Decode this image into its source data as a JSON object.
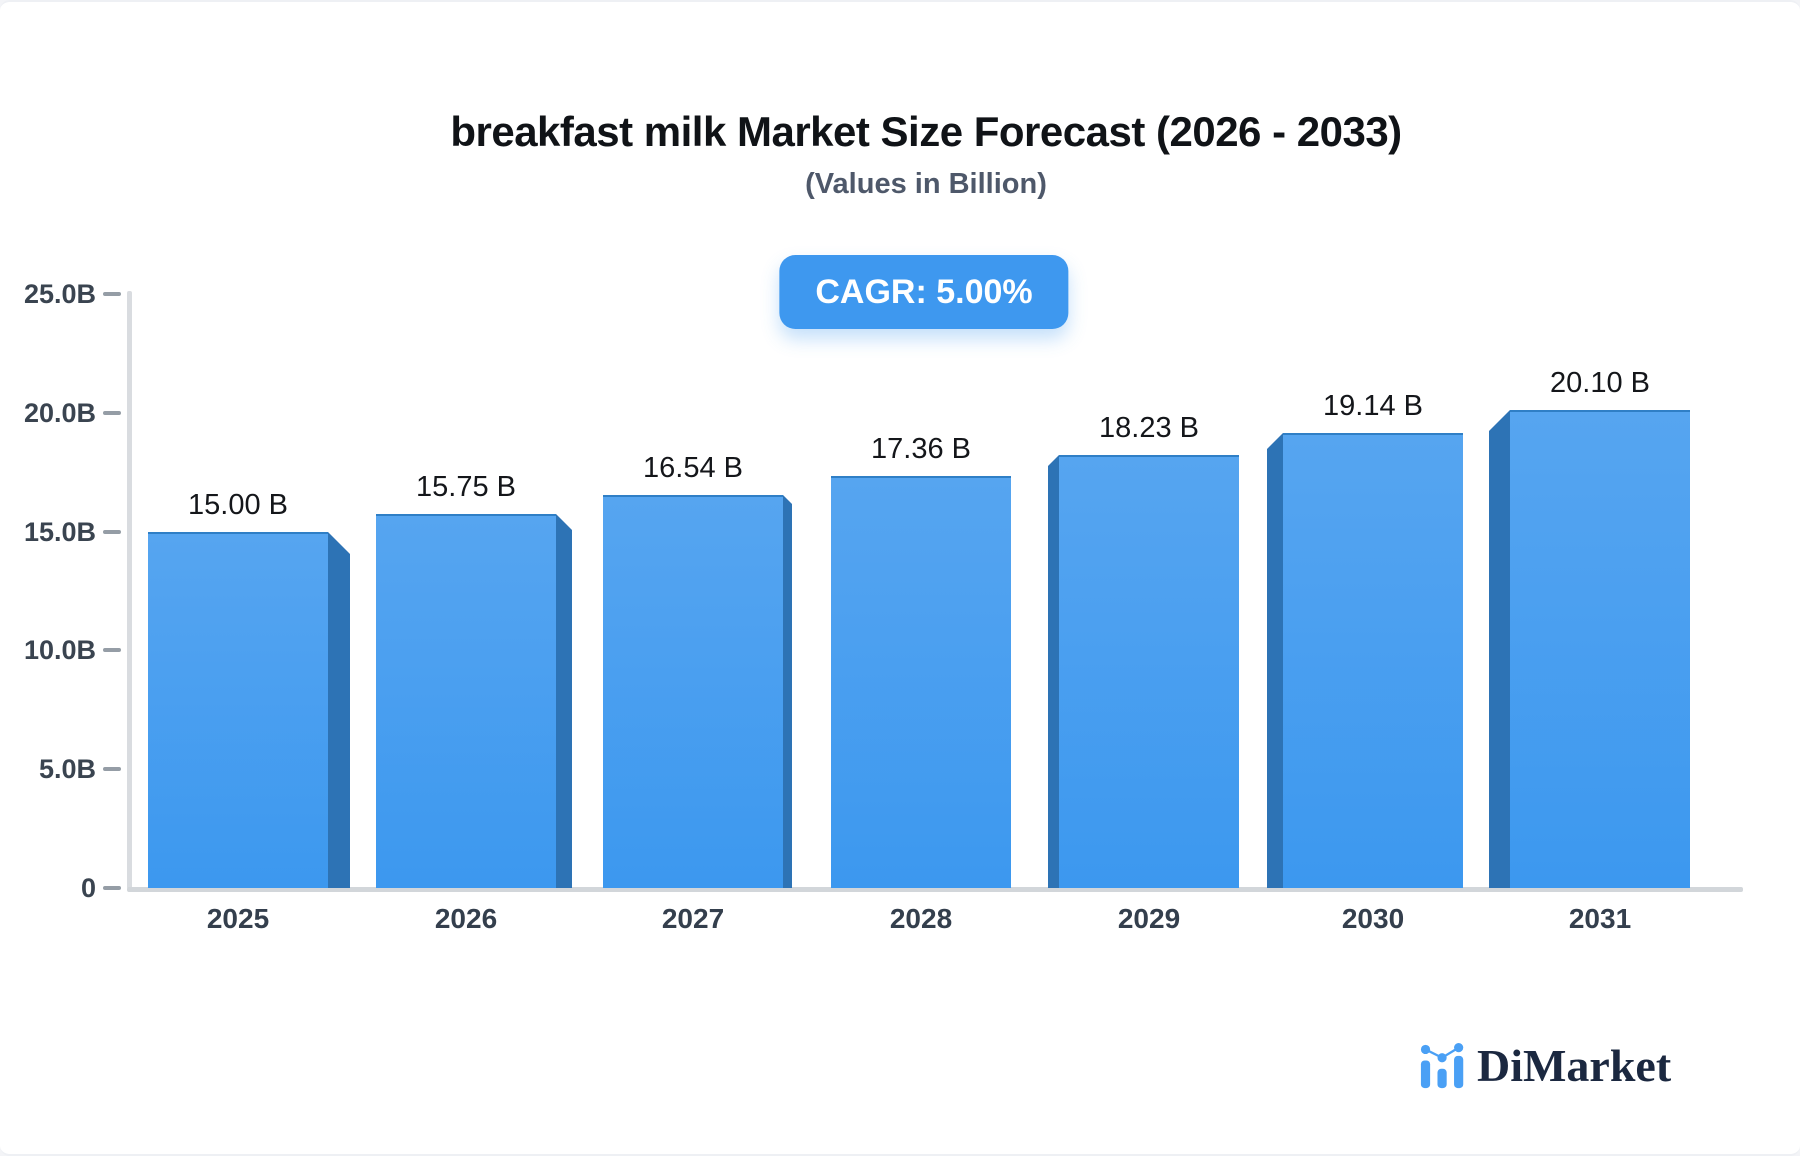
{
  "header": {
    "title": "breakfast milk Market Size Forecast (2026 - 2033)",
    "subtitle": "(Values in Billion)"
  },
  "cagr": {
    "label": "CAGR: 5.00%"
  },
  "brand": {
    "name": "DiMarket",
    "icon": "dimarket-bars-logo-icon"
  },
  "colors": {
    "accent_blue": "#3e98ef",
    "bar_front_top": "#56a5f0",
    "bar_front_bottom": "#3c98ef",
    "bar_side": "#2d73b5",
    "bar_top_edge": "#2f7fc6",
    "axis_gray": "#d6d9dd",
    "tick_gray": "#959da6",
    "axis_label": "#3a4450",
    "value_text": "#14161a",
    "title_text": "#101317",
    "subtitle_text": "#4e586a",
    "badge_text": "#ffffff",
    "logo_navy": "#1b2840",
    "logo_blue": "#4aa0f5"
  },
  "chart_data": {
    "type": "bar",
    "title": "breakfast milk Market Size Forecast (2026 - 2033)",
    "subtitle": "(Values in Billion)",
    "annotation": "CAGR: 5.00%",
    "categories": [
      "2025",
      "2026",
      "2027",
      "2028",
      "2029",
      "2030",
      "2031"
    ],
    "values": [
      15.0,
      15.75,
      16.54,
      17.36,
      18.23,
      19.14,
      20.1
    ],
    "bar_labels": [
      "15.00 B",
      "15.75 B",
      "16.54 B",
      "17.36 B",
      "18.23 B",
      "19.14 B",
      "20.10 B"
    ],
    "y_ticks": [
      {
        "label": "25.0B",
        "value": 25
      },
      {
        "label": "20.0B",
        "value": 20
      },
      {
        "label": "15.0B",
        "value": 15
      },
      {
        "label": "10.0B",
        "value": 10
      },
      {
        "label": "5.0B",
        "value": 5
      },
      {
        "label": "0",
        "value": 0
      }
    ],
    "ylim": [
      0,
      25
    ],
    "xlabel": "",
    "ylabel": "",
    "grid": false,
    "legend_position": "none",
    "bar_style": "3d-extruded-blue"
  }
}
